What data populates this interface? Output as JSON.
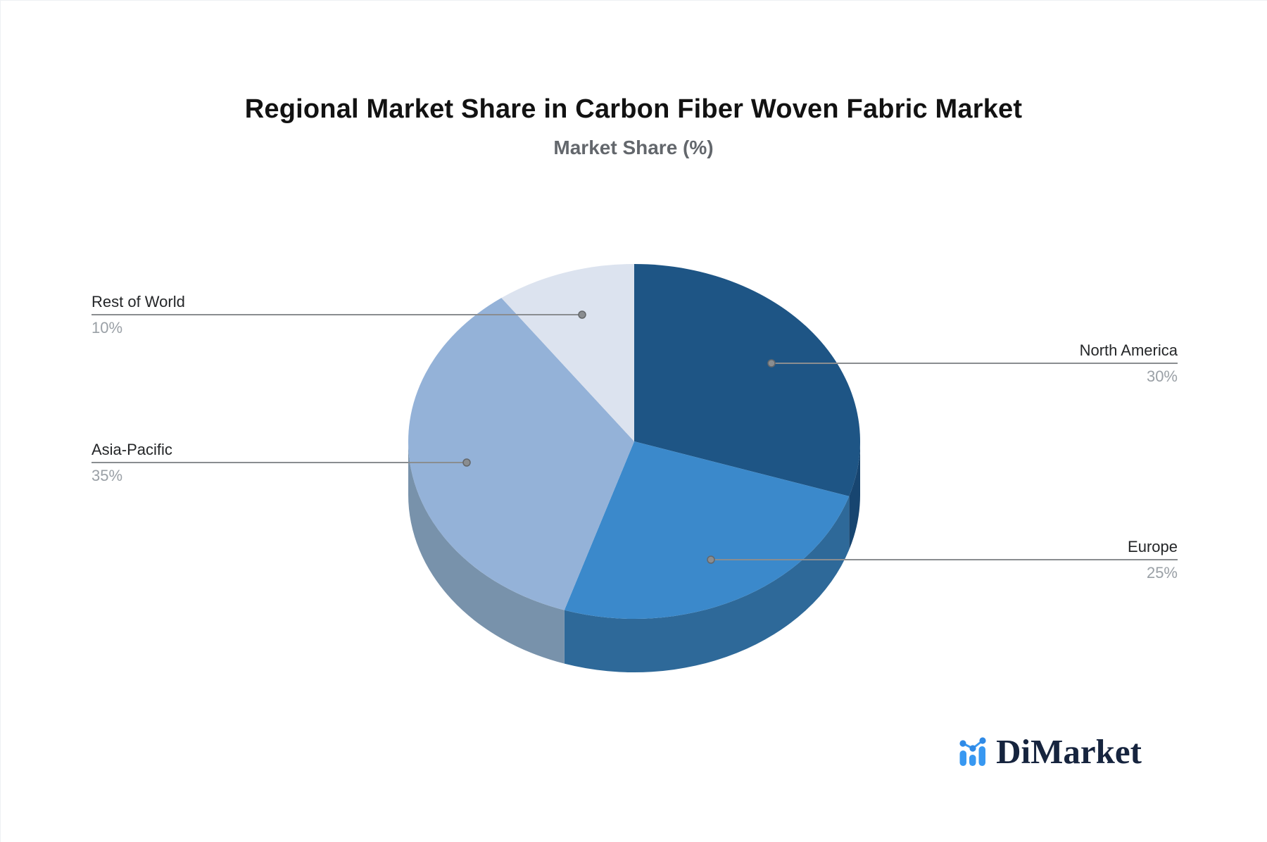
{
  "chart": {
    "title": "Regional Market Share in Carbon Fiber Woven Fabric Market",
    "subtitle": "Market Share (%)"
  },
  "chart_data": {
    "type": "pie",
    "title": "Regional Market Share in Carbon Fiber Woven Fabric Market",
    "subtitle": "Market Share (%)",
    "unit": "%",
    "effect_3d": true,
    "start_angle": "top",
    "direction": "clockwise",
    "legend_position": "none",
    "label_style": "outside-with-leader-lines",
    "slices": [
      {
        "label": "North America",
        "value": 30,
        "display": "30%",
        "color": "#1e5585",
        "side_color": "#174570"
      },
      {
        "label": "Europe",
        "value": 25,
        "display": "25%",
        "color": "#3b89cb",
        "side_color": "#2e6999"
      },
      {
        "label": "Asia-Pacific",
        "value": 35,
        "display": "35%",
        "color": "#94b2d8",
        "side_color": "#7892ab"
      },
      {
        "label": "Rest of World",
        "value": 10,
        "display": "10%",
        "color": "#dce3ef",
        "side_color": "#b6c0d0"
      }
    ],
    "connector_color": "#8a8d90",
    "label_color": "#242628",
    "percent_color": "#9aa0a6"
  },
  "branding": {
    "logo_text": "DiMarket",
    "logo_icon": "bar-chart-trend-icon",
    "icon_color": "#3898f1",
    "text_color": "#16243e"
  }
}
